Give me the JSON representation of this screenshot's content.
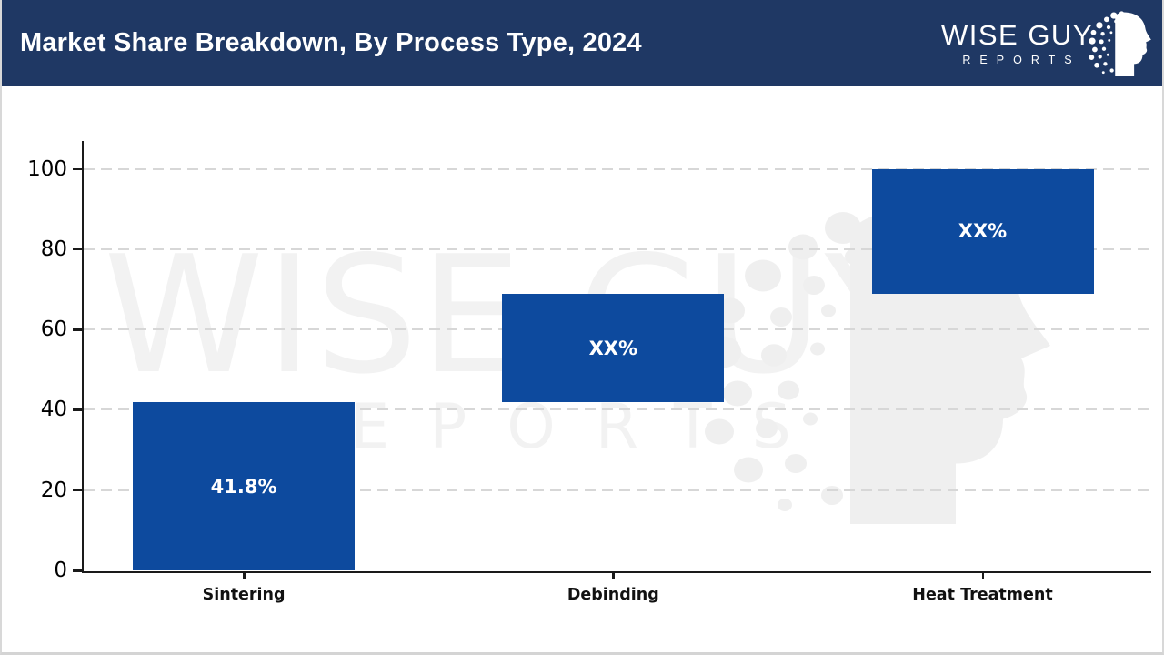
{
  "header": {
    "title": "Market Share Breakdown, By Process Type, 2024",
    "background": "#1f3864",
    "logo": {
      "name": "WISE GUY",
      "sub": "REPORTS"
    }
  },
  "watermark": {
    "line1": "WISE GUY",
    "line2": "REPORTS"
  },
  "chart_data": {
    "type": "bar",
    "variant": "waterfall",
    "title": "Market Share Breakdown, By Process Type, 2024",
    "categories": [
      "Sintering",
      "Debinding",
      "Heat Treatment"
    ],
    "segments": [
      {
        "category": "Sintering",
        "start": 0,
        "end": 41.8,
        "label": "41.8%"
      },
      {
        "category": "Debinding",
        "start": 41.8,
        "end": 68.8,
        "label": "XX%"
      },
      {
        "category": "Heat Treatment",
        "start": 68.8,
        "end": 100,
        "label": "XX%"
      }
    ],
    "bar_color": "#0d4a9e",
    "value_label_color": "#ffffff",
    "ylim": [
      0,
      100
    ],
    "yticks": [
      0,
      20,
      40,
      60,
      80,
      100
    ],
    "grid": {
      "axis": "y",
      "style": "dashed",
      "color": "#d7d7d7"
    },
    "legend": null
  }
}
